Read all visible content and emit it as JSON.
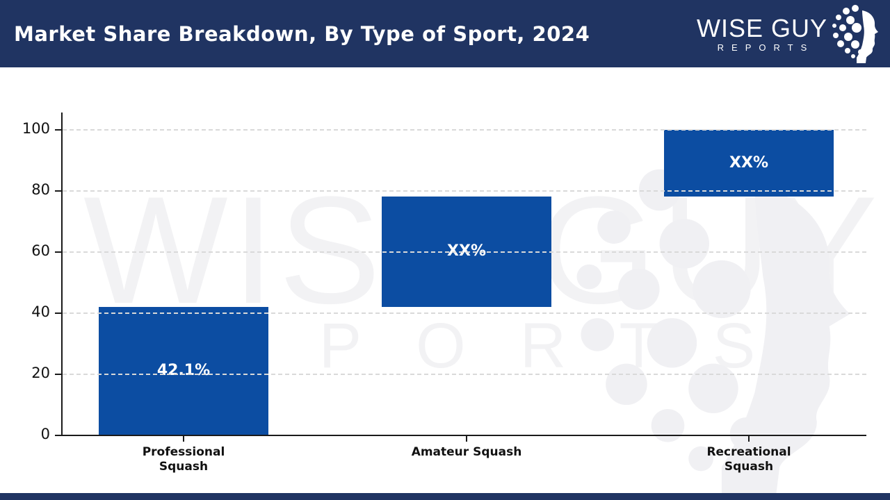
{
  "header": {
    "title": "Market Share Breakdown, By Type of Sport, 2024",
    "logo": {
      "line1": "WISE GUY",
      "line2": "REPORTS"
    }
  },
  "watermark": {
    "line1": "WISE GUY",
    "line2": "REPORTS"
  },
  "colors": {
    "header_bg": "#203462",
    "footer_bg": "#203462",
    "bar": "#0c4da2",
    "bar_label": "#ffffff",
    "gridline": "#d9d9d9",
    "axis": "#1a1a1a",
    "watermark": "#f2f2f4",
    "background": "#ffffff"
  },
  "chart_data": {
    "type": "bar",
    "subtype": "waterfall",
    "title": "Market Share Breakdown, By Type of Sport, 2024",
    "categories": [
      "Professional\nSquash",
      "Amateur Squash",
      "Recreational\nSquash"
    ],
    "segments": [
      {
        "start": 0,
        "end": 42.1
      },
      {
        "start": 42.1,
        "end": 78.2
      },
      {
        "start": 78.2,
        "end": 100
      }
    ],
    "values_shown": [
      "42.1%",
      "XX%",
      "XX%"
    ],
    "yticks": [
      0,
      20,
      40,
      60,
      80,
      100
    ],
    "ylim": [
      0,
      100
    ],
    "xlabel": "",
    "ylabel": "",
    "grid": "horizontal-dashed",
    "legend": "none"
  }
}
